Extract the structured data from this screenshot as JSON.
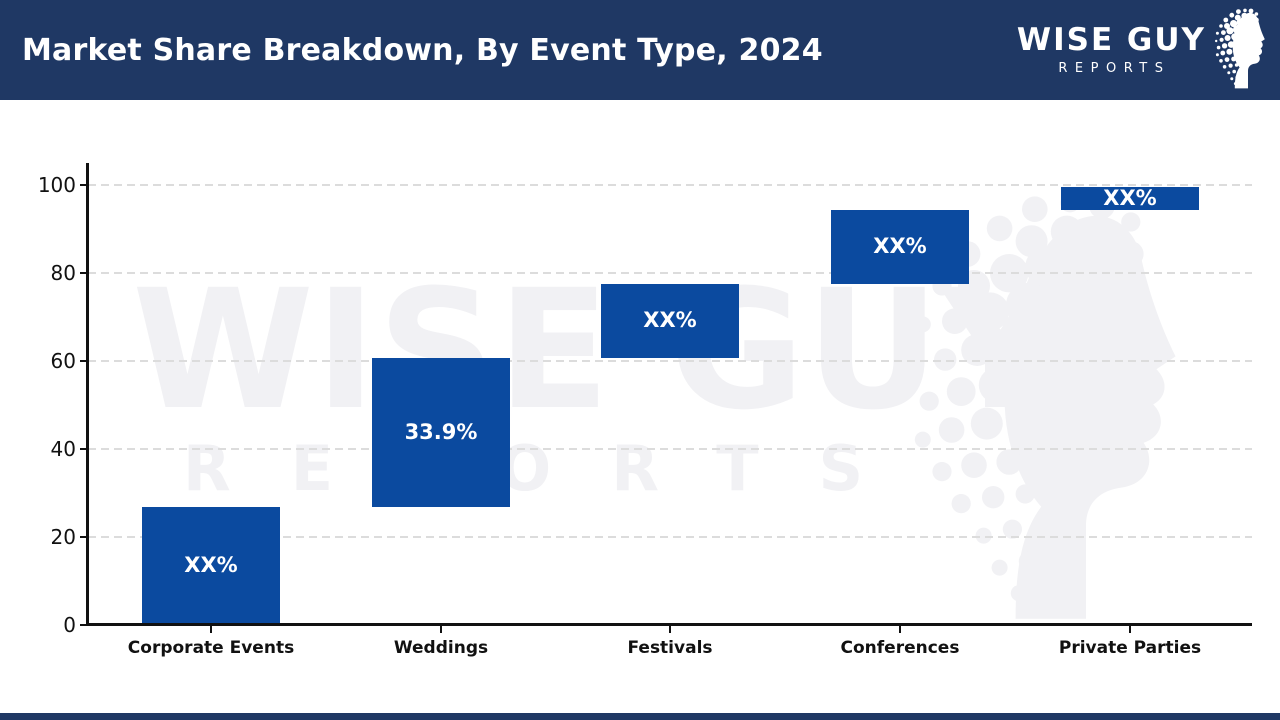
{
  "header": {
    "title": "Market Share Breakdown, By Event Type, 2024",
    "logo": {
      "wordmark": "WISE GUY",
      "subtitle": "REPORTS"
    }
  },
  "watermark": {
    "wordmark": "WISE GUY",
    "subtitle": "REPORTS"
  },
  "colors": {
    "header_navy": "#1f3864",
    "bar_blue": "#0b4a9f",
    "gridline_gray": "#dcdcdc",
    "axis_black": "#111111",
    "watermark_gray": "#f1f1f4",
    "bar_label_white": "#ffffff"
  },
  "chart_data": {
    "type": "bar",
    "variant": "waterfall",
    "title": "Market Share Breakdown, By Event Type, 2024",
    "categories": [
      "Corporate Events",
      "Weddings",
      "Festivals",
      "Conferences",
      "Private Parties"
    ],
    "series": [
      {
        "name": "Market share (%)",
        "bar_starts": [
          0,
          26.9,
          60.8,
          77.5,
          94.4
        ],
        "bar_ends": [
          26.9,
          60.8,
          77.5,
          94.4,
          99.6
        ]
      }
    ],
    "bar_labels": [
      "XX%",
      "33.9%",
      "XX%",
      "XX%",
      "XX%"
    ],
    "yticks": [
      0,
      20,
      40,
      60,
      80,
      100
    ],
    "ylim": [
      0,
      105
    ],
    "xlabel": "",
    "ylabel": "",
    "grid": "horizontal-dashed",
    "legend": "none"
  }
}
